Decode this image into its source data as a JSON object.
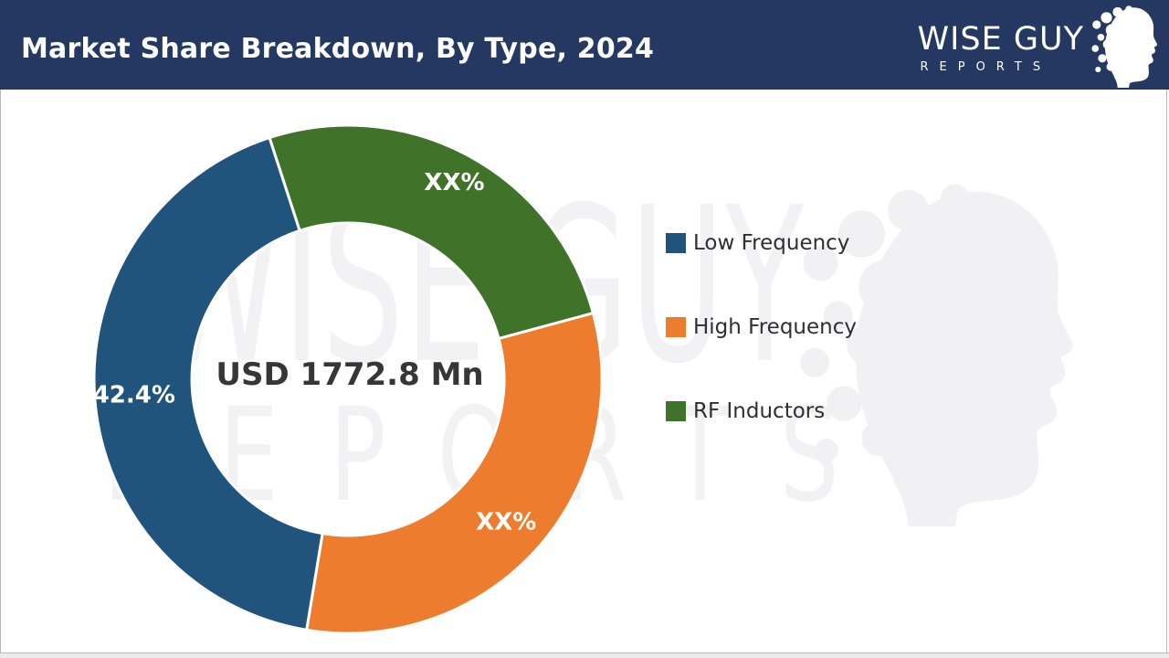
{
  "header": {
    "title": "Market Share Breakdown, By Type, 2024",
    "logo": {
      "brand": "WISE GUY",
      "sub": "REPORTS"
    }
  },
  "watermark": {
    "brand": "WISE GUY",
    "sub": "REPORTS"
  },
  "chart_data": {
    "type": "pie",
    "subtype": "donut",
    "title": "Market Share Breakdown, By Type, 2024",
    "center_label": "USD 1772.8 Mn",
    "start_angle_deg": 108,
    "direction": "counterclockwise",
    "inner_radius_frac": 0.615,
    "slice_gap_color": "#ffffff",
    "legend_position": "right-middle",
    "slices": [
      {
        "name": "Low Frequency",
        "value_pct": 42.4,
        "label": "42.4%",
        "color": "#20547c",
        "label_r_frac": 0.845
      },
      {
        "name": "High Frequency",
        "value_pct": 31.8,
        "label": "XX%",
        "color": "#ed7c2e",
        "label_r_frac": 0.84
      },
      {
        "name": "RF Inductors",
        "value_pct": 25.8,
        "label": "XX%",
        "color": "#40732a",
        "label_r_frac": 0.88
      }
    ]
  },
  "colors": {
    "header_bg": "#243862",
    "title_text": "#ffffff",
    "center_text": "#363636",
    "legend_text": "#2f2f2f",
    "watermark": "#f2f2f4",
    "border": "#b9b9b9"
  }
}
